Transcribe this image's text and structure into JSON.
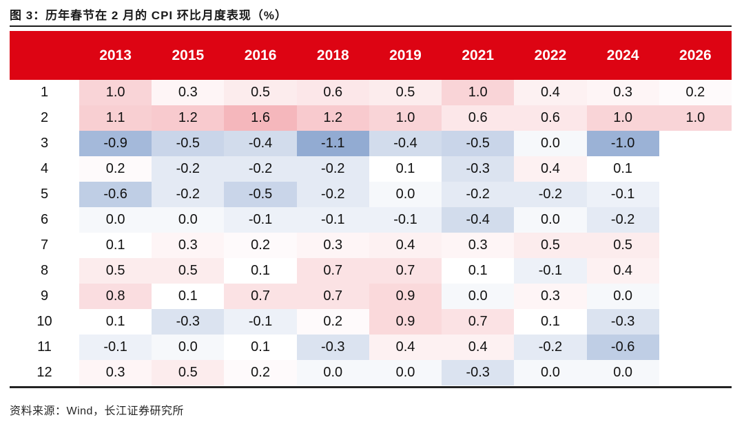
{
  "title": "图 3：历年春节在 2 月的 CPI 环比月度表现（%）",
  "source": "资料来源：Wind，长江证券研究所",
  "colors": {
    "header_bg": "#dd0413",
    "header_text": "#ffffff",
    "scale_max_color": "#f5b7bc",
    "scale_mid_color": "#ffffff",
    "scale_min_color": "#92abd2",
    "empty_cell_color": "#ffffff"
  },
  "chart_data": {
    "type": "heatmap",
    "title": "图 3：历年春节在 2 月的 CPI 环比月度表现（%）",
    "xlabel": "",
    "ylabel": "",
    "columns": [
      "2013",
      "2015",
      "2016",
      "2018",
      "2019",
      "2021",
      "2022",
      "2024",
      "2026"
    ],
    "rows": [
      "1",
      "2",
      "3",
      "4",
      "5",
      "6",
      "7",
      "8",
      "9",
      "10",
      "11",
      "12"
    ],
    "values": [
      [
        1.0,
        0.3,
        0.5,
        0.6,
        0.5,
        1.0,
        0.4,
        0.3,
        0.2
      ],
      [
        1.1,
        1.2,
        1.6,
        1.2,
        1.0,
        0.6,
        0.6,
        1.0,
        1.0
      ],
      [
        -0.9,
        -0.5,
        -0.4,
        -1.1,
        -0.4,
        -0.5,
        0.0,
        -1.0,
        null
      ],
      [
        0.2,
        -0.2,
        -0.2,
        -0.2,
        0.1,
        -0.3,
        0.4,
        0.1,
        null
      ],
      [
        -0.6,
        -0.2,
        -0.5,
        -0.2,
        0.0,
        -0.2,
        -0.2,
        -0.1,
        null
      ],
      [
        0.0,
        0.0,
        -0.1,
        -0.1,
        -0.1,
        -0.4,
        0.0,
        -0.2,
        null
      ],
      [
        0.1,
        0.3,
        0.2,
        0.3,
        0.4,
        0.3,
        0.5,
        0.5,
        null
      ],
      [
        0.5,
        0.5,
        0.1,
        0.7,
        0.7,
        0.1,
        -0.1,
        0.4,
        null
      ],
      [
        0.8,
        0.1,
        0.7,
        0.7,
        0.9,
        0.0,
        0.3,
        0.0,
        null
      ],
      [
        0.1,
        -0.3,
        -0.1,
        0.2,
        0.9,
        0.7,
        0.1,
        -0.3,
        null
      ],
      [
        -0.1,
        0.0,
        0.1,
        -0.3,
        0.4,
        0.4,
        -0.2,
        -0.6,
        null
      ],
      [
        0.3,
        0.5,
        0.2,
        0.0,
        0.0,
        -0.3,
        0.0,
        0.0,
        null
      ]
    ],
    "color_scale": {
      "min_value": -1.1,
      "mid_value": 0.1,
      "max_value": 1.6
    },
    "value_format": "one_decimal",
    "legend": "none",
    "grid": "off"
  }
}
